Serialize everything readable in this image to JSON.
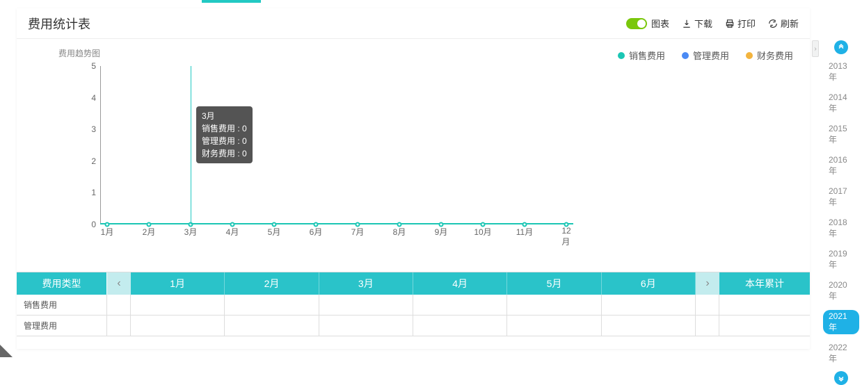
{
  "header": {
    "title": "费用统计表",
    "toggle_label": "图表",
    "download_label": "下载",
    "print_label": "打印",
    "refresh_label": "刷新"
  },
  "chart": {
    "type": "line",
    "subtitle": "费用趋势图",
    "categories": [
      "1月",
      "2月",
      "3月",
      "4月",
      "5月",
      "6月",
      "7月",
      "8月",
      "9月",
      "10月",
      "11月",
      "12月"
    ],
    "series": [
      {
        "name": "销售费用",
        "color": "#1bc6b4",
        "values": [
          0,
          0,
          0,
          0,
          0,
          0,
          0,
          0,
          0,
          0,
          0,
          0
        ]
      },
      {
        "name": "管理费用",
        "color": "#4a8af4",
        "values": [
          0,
          0,
          0,
          0,
          0,
          0,
          0,
          0,
          0,
          0,
          0,
          0
        ]
      },
      {
        "name": "财务费用",
        "color": "#f3b43e",
        "values": [
          0,
          0,
          0,
          0,
          0,
          0,
          0,
          0,
          0,
          0,
          0,
          0
        ]
      }
    ],
    "ylim": [
      0,
      5
    ],
    "ytick_step": 1,
    "grid_color": "#eeeeee",
    "axis_color": "#999999",
    "label_color": "#666666",
    "background_color": "#ffffff",
    "label_fontsize": 12,
    "marker_style": "circle",
    "marker_size": 7,
    "line_width": 2,
    "crosshair_index": 2,
    "crosshair_color": "#22c9c3",
    "tooltip": {
      "title": "3月",
      "lines": [
        "销售费用 : 0",
        "管理费用 : 0",
        "财务费用 : 0"
      ],
      "bg_color": "rgba(60,60,60,0.88)",
      "text_color": "#ffffff"
    }
  },
  "table": {
    "header_bg": "#2ac3c9",
    "header_text_color": "#ffffff",
    "scroll_btn_bg": "#c3ecee",
    "first_col_header": "费用类型",
    "last_col_header": "本年累计",
    "visible_month_cols": [
      "1月",
      "2月",
      "3月",
      "4月",
      "5月",
      "6月"
    ],
    "rows": [
      {
        "label": "销售费用",
        "cells": [
          "",
          "",
          "",
          "",
          "",
          ""
        ],
        "total": ""
      },
      {
        "label": "管理费用",
        "cells": [
          "",
          "",
          "",
          "",
          "",
          ""
        ],
        "total": ""
      }
    ]
  },
  "year_rail": {
    "years": [
      "2013年",
      "2014年",
      "2015年",
      "2016年",
      "2017年",
      "2018年",
      "2019年",
      "2020年",
      "2021年",
      "2022年"
    ],
    "active": "2021年",
    "btn_color": "#1fb1e6"
  }
}
